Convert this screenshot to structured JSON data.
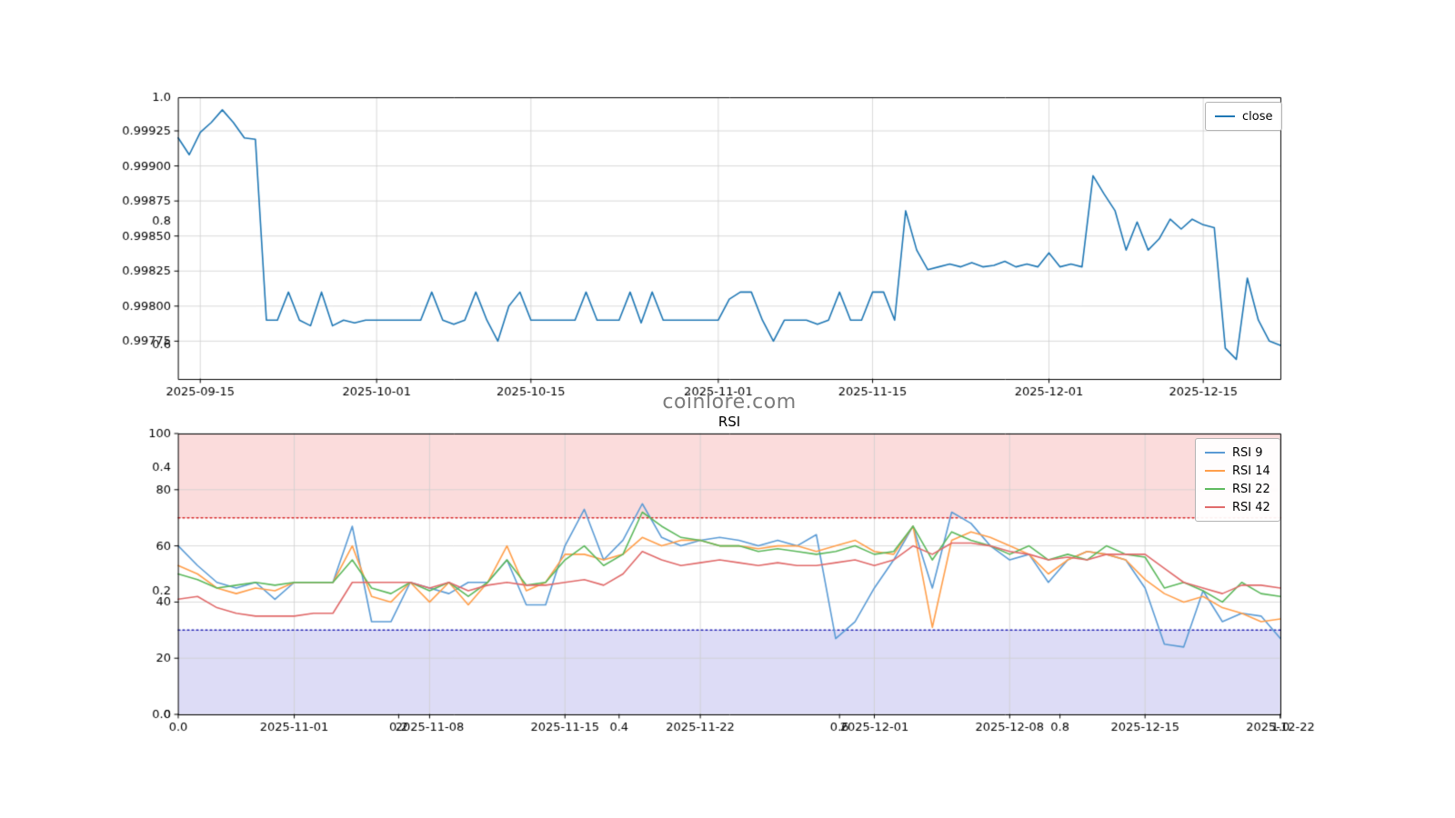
{
  "watermark": "coinlore.com",
  "overlay_axis": {
    "x_tick_labels": [
      "0.0",
      "0.2",
      "0.4",
      "0.6",
      "0.8",
      "1.0"
    ],
    "y_tick_labels": [
      "0.0",
      "0.2",
      "0.4",
      "0.6",
      "0.8",
      "1.0"
    ]
  },
  "chart_data": [
    {
      "type": "line",
      "name": "price-close",
      "title": "",
      "legend_entries": [
        "close"
      ],
      "ylim": [
        0.99748,
        0.99949
      ],
      "y_tick_labels": [
        "0.99775",
        "0.99800",
        "0.99825",
        "0.99850",
        "0.99875",
        "0.99900",
        "0.99925"
      ],
      "y_tick_values": [
        0.99775,
        0.998,
        0.99825,
        0.9985,
        0.99875,
        0.999,
        0.99925
      ],
      "x_tick_labels": [
        "2025-09-15",
        "2025-10-01",
        "2025-10-15",
        "2025-11-01",
        "2025-11-15",
        "2025-12-01",
        "2025-12-15"
      ],
      "grid": true,
      "x_dates": [
        "2025-09-13",
        "2025-09-14",
        "2025-09-15",
        "2025-09-16",
        "2025-09-17",
        "2025-09-18",
        "2025-09-19",
        "2025-09-20",
        "2025-09-21",
        "2025-09-22",
        "2025-09-23",
        "2025-09-24",
        "2025-09-25",
        "2025-09-26",
        "2025-09-27",
        "2025-09-28",
        "2025-09-29",
        "2025-09-30",
        "2025-10-01",
        "2025-10-02",
        "2025-10-03",
        "2025-10-04",
        "2025-10-05",
        "2025-10-06",
        "2025-10-07",
        "2025-10-08",
        "2025-10-09",
        "2025-10-10",
        "2025-10-11",
        "2025-10-12",
        "2025-10-13",
        "2025-10-14",
        "2025-10-15",
        "2025-10-16",
        "2025-10-17",
        "2025-10-18",
        "2025-10-19",
        "2025-10-20",
        "2025-10-21",
        "2025-10-22",
        "2025-10-23",
        "2025-10-24",
        "2025-10-25",
        "2025-10-26",
        "2025-10-27",
        "2025-10-28",
        "2025-10-29",
        "2025-10-30",
        "2025-10-31",
        "2025-11-01",
        "2025-11-02",
        "2025-11-03",
        "2025-11-04",
        "2025-11-05",
        "2025-11-06",
        "2025-11-07",
        "2025-11-08",
        "2025-11-09",
        "2025-11-10",
        "2025-11-11",
        "2025-11-12",
        "2025-11-13",
        "2025-11-14",
        "2025-11-15",
        "2025-11-16",
        "2025-11-17",
        "2025-11-18",
        "2025-11-19",
        "2025-11-20",
        "2025-11-21",
        "2025-11-22",
        "2025-11-23",
        "2025-11-24",
        "2025-11-25",
        "2025-11-26",
        "2025-11-27",
        "2025-11-28",
        "2025-11-29",
        "2025-11-30",
        "2025-12-01",
        "2025-12-02",
        "2025-12-03",
        "2025-12-04",
        "2025-12-05",
        "2025-12-06",
        "2025-12-07",
        "2025-12-08",
        "2025-12-09",
        "2025-12-10",
        "2025-12-11",
        "2025-12-12",
        "2025-12-13",
        "2025-12-14",
        "2025-12-15",
        "2025-12-16",
        "2025-12-17",
        "2025-12-18",
        "2025-12-19",
        "2025-12-20",
        "2025-12-21",
        "2025-12-22"
      ],
      "series": [
        {
          "name": "close",
          "color": "#1f77b4",
          "values": [
            0.9992,
            0.99908,
            0.99924,
            0.99931,
            0.9994,
            0.99931,
            0.9992,
            0.99919,
            0.9979,
            0.9979,
            0.9981,
            0.9979,
            0.99786,
            0.9981,
            0.99786,
            0.9979,
            0.99788,
            0.9979,
            0.9979,
            0.9979,
            0.9979,
            0.9979,
            0.9979,
            0.9981,
            0.9979,
            0.99787,
            0.9979,
            0.9981,
            0.9979,
            0.99775,
            0.998,
            0.9981,
            0.9979,
            0.9979,
            0.9979,
            0.9979,
            0.9979,
            0.9981,
            0.9979,
            0.9979,
            0.9979,
            0.9981,
            0.99788,
            0.9981,
            0.9979,
            0.9979,
            0.9979,
            0.9979,
            0.9979,
            0.9979,
            0.99805,
            0.9981,
            0.9981,
            0.9979,
            0.99775,
            0.9979,
            0.9979,
            0.9979,
            0.99787,
            0.9979,
            0.9981,
            0.9979,
            0.9979,
            0.9981,
            0.9981,
            0.9979,
            0.99868,
            0.9984,
            0.99826,
            0.99828,
            0.9983,
            0.99828,
            0.99831,
            0.99828,
            0.99829,
            0.99832,
            0.99828,
            0.9983,
            0.99828,
            0.99838,
            0.99828,
            0.9983,
            0.99828,
            0.99893,
            0.9988,
            0.99868,
            0.9984,
            0.9986,
            0.9984,
            0.99848,
            0.99862,
            0.99855,
            0.99862,
            0.99858,
            0.99856,
            0.9977,
            0.99762,
            0.9982,
            0.9979,
            0.99775,
            0.99772
          ]
        }
      ]
    },
    {
      "type": "line",
      "name": "rsi",
      "title": "RSI",
      "legend_entries": [
        "RSI 9",
        "RSI 14",
        "RSI 22",
        "RSI 42"
      ],
      "ylim": [
        0,
        100
      ],
      "y_tick_labels": [
        "0",
        "20",
        "40",
        "60",
        "80",
        "100"
      ],
      "y_tick_values": [
        0,
        20,
        40,
        60,
        80,
        100
      ],
      "x_tick_labels": [
        "2025-11-01",
        "2025-11-08",
        "2025-11-15",
        "2025-11-22",
        "2025-12-01",
        "2025-12-08",
        "2025-12-15",
        "2025-12-22"
      ],
      "grid": true,
      "bands": [
        {
          "from": 70,
          "to": 100,
          "color": "#fbdcdc",
          "meaning": "overbought"
        },
        {
          "from": 0,
          "to": 30,
          "color": "#dddcf6",
          "meaning": "oversold"
        }
      ],
      "hlines": [
        {
          "y": 70,
          "color": "#d62728",
          "style": "dotted"
        },
        {
          "y": 30,
          "color": "#2727b5",
          "style": "dotted"
        }
      ],
      "x_dates": [
        "2025-10-26",
        "2025-10-27",
        "2025-10-28",
        "2025-10-29",
        "2025-10-30",
        "2025-10-31",
        "2025-11-01",
        "2025-11-02",
        "2025-11-03",
        "2025-11-04",
        "2025-11-05",
        "2025-11-06",
        "2025-11-07",
        "2025-11-08",
        "2025-11-09",
        "2025-11-10",
        "2025-11-11",
        "2025-11-12",
        "2025-11-13",
        "2025-11-14",
        "2025-11-15",
        "2025-11-16",
        "2025-11-17",
        "2025-11-18",
        "2025-11-19",
        "2025-11-20",
        "2025-11-21",
        "2025-11-22",
        "2025-11-23",
        "2025-11-24",
        "2025-11-25",
        "2025-11-26",
        "2025-11-27",
        "2025-11-28",
        "2025-11-29",
        "2025-11-30",
        "2025-12-01",
        "2025-12-02",
        "2025-12-03",
        "2025-12-04",
        "2025-12-05",
        "2025-12-06",
        "2025-12-07",
        "2025-12-08",
        "2025-12-09",
        "2025-12-10",
        "2025-12-11",
        "2025-12-12",
        "2025-12-13",
        "2025-12-14",
        "2025-12-15",
        "2025-12-16",
        "2025-12-17",
        "2025-12-18",
        "2025-12-19",
        "2025-12-20",
        "2025-12-21",
        "2025-12-22"
      ],
      "series": [
        {
          "name": "RSI 9",
          "color": "#5b9bd5",
          "values": [
            60,
            53,
            47,
            45,
            47,
            41,
            47,
            47,
            47,
            67,
            33,
            33,
            47,
            45,
            43,
            47,
            47,
            55,
            39,
            39,
            60,
            73,
            55,
            62,
            75,
            63,
            60,
            62,
            63,
            62,
            60,
            62,
            60,
            64,
            27,
            33,
            45,
            55,
            67,
            45,
            72,
            68,
            60,
            55,
            57,
            47,
            55,
            58,
            57,
            55,
            45,
            25,
            24,
            44,
            33,
            36,
            35,
            27
          ]
        },
        {
          "name": "RSI 14",
          "color": "#ff9e4a",
          "values": [
            53,
            50,
            45,
            43,
            45,
            44,
            47,
            47,
            47,
            60,
            42,
            40,
            47,
            40,
            47,
            39,
            47,
            60,
            44,
            47,
            57,
            57,
            55,
            57,
            63,
            60,
            62,
            62,
            60,
            60,
            59,
            60,
            60,
            58,
            60,
            62,
            58,
            57,
            67,
            31,
            62,
            65,
            63,
            60,
            57,
            50,
            55,
            58,
            57,
            55,
            48,
            43,
            40,
            42,
            38,
            36,
            33,
            34
          ]
        },
        {
          "name": "RSI 22",
          "color": "#5cb85c",
          "values": [
            50,
            48,
            45,
            46,
            47,
            46,
            47,
            47,
            47,
            55,
            45,
            43,
            47,
            44,
            47,
            42,
            47,
            55,
            46,
            47,
            55,
            60,
            53,
            57,
            72,
            67,
            63,
            62,
            60,
            60,
            58,
            59,
            58,
            57,
            58,
            60,
            57,
            58,
            67,
            55,
            65,
            62,
            60,
            57,
            60,
            55,
            57,
            55,
            60,
            57,
            56,
            45,
            47,
            44,
            40,
            47,
            43,
            42
          ]
        },
        {
          "name": "RSI 42",
          "color": "#e06a6a",
          "values": [
            41,
            42,
            38,
            36,
            35,
            35,
            35,
            36,
            36,
            47,
            47,
            47,
            47,
            45,
            47,
            44,
            46,
            47,
            46,
            46,
            47,
            48,
            46,
            50,
            58,
            55,
            53,
            54,
            55,
            54,
            53,
            54,
            53,
            53,
            54,
            55,
            53,
            55,
            60,
            57,
            61,
            61,
            60,
            58,
            57,
            55,
            56,
            55,
            57,
            57,
            57,
            52,
            47,
            45,
            43,
            46,
            46,
            45
          ]
        }
      ]
    }
  ]
}
